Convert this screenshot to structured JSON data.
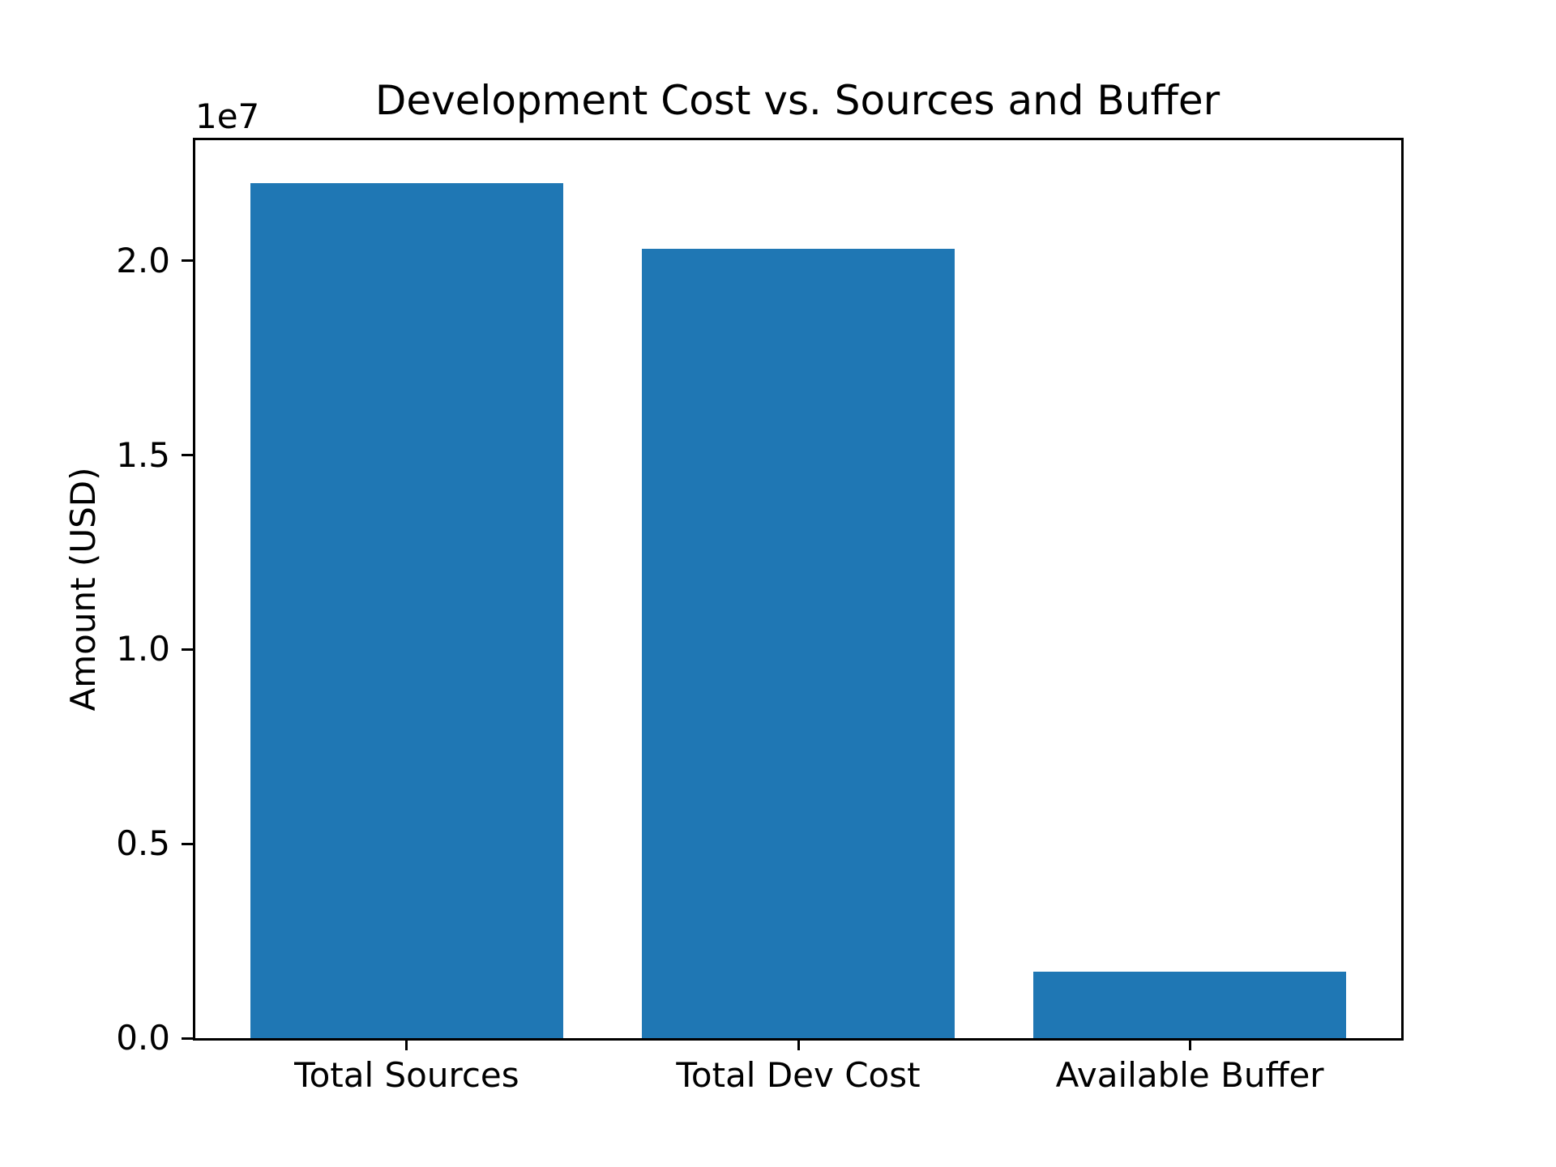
{
  "chart_data": {
    "type": "bar",
    "title": "Development Cost vs. Sources and Buffer",
    "xlabel": "",
    "ylabel": "Amount (USD)",
    "offset_text": "1e7",
    "categories": [
      "Total Sources",
      "Total Dev Cost",
      "Available Buffer"
    ],
    "values": [
      22000000,
      20300000,
      1700000
    ],
    "bar_color": "#1f77b4",
    "bar_width": 0.8,
    "xlim": [
      -0.54,
      2.54
    ],
    "ylim": [
      0,
      23100000
    ],
    "yticks": [
      0,
      5000000,
      10000000,
      15000000,
      20000000
    ],
    "ytick_labels": [
      "0.0",
      "0.5",
      "1.0",
      "1.5",
      "2.0"
    ],
    "grid": false,
    "legend": "none",
    "spine_color": "#000000",
    "text_color": "#000000",
    "background_color": "#ffffff"
  }
}
